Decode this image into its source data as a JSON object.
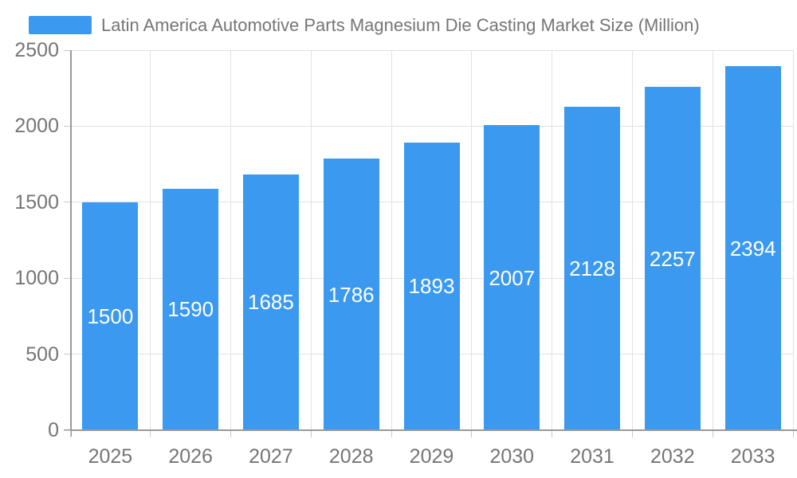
{
  "legend": {
    "label": "Latin America Automotive Parts Magnesium Die Casting Market Size (Million)"
  },
  "chart_data": {
    "type": "bar",
    "title": "Latin America Automotive Parts Magnesium Die Casting Market Size (Million)",
    "categories": [
      "2025",
      "2026",
      "2027",
      "2028",
      "2029",
      "2030",
      "2031",
      "2032",
      "2033"
    ],
    "values": [
      1500,
      1590,
      1685,
      1786,
      1893,
      2007,
      2128,
      2257,
      2394
    ],
    "xlabel": "",
    "ylabel": "",
    "ylim": [
      0,
      2500
    ],
    "yticks": [
      0,
      500,
      1000,
      1500,
      2000,
      2500
    ],
    "grid": true,
    "legend_position": "top-left",
    "bar_labels_visible": true,
    "colors": {
      "bar": "#3B99EF",
      "bar_label": "#FFFFFF",
      "axis_line": "#999999",
      "grid_line": "#E2E2E2",
      "tick": "#C9C9C9",
      "text": "#757575"
    }
  }
}
